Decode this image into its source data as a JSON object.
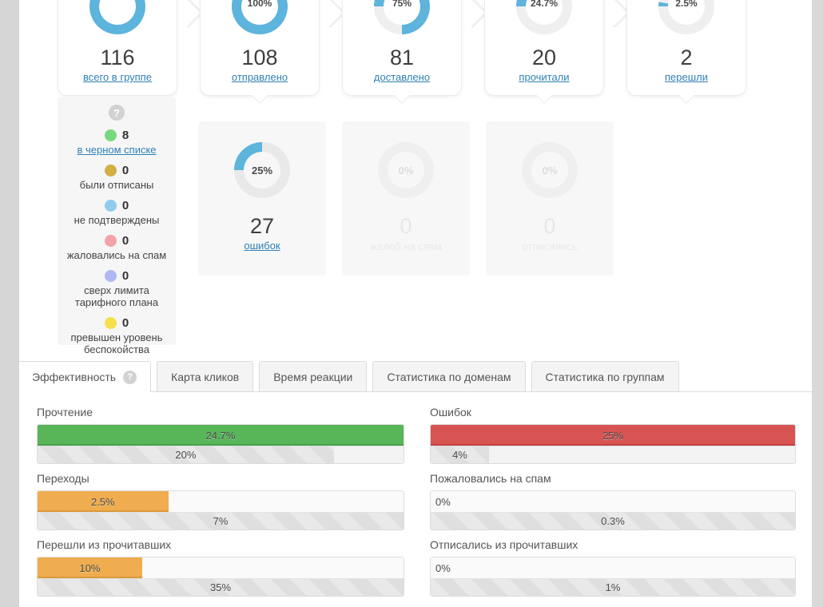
{
  "colors": {
    "accent_blue": "#5db4dc",
    "green": "#58b558",
    "orange": "#efad4f",
    "red": "#d75452",
    "link_blue": "#3080b5",
    "legend_blacklist": "#79d97f",
    "legend_unsubscribed": "#d2ae46",
    "legend_unconfirmed": "#8fccee",
    "legend_spam": "#f3a3a5",
    "legend_over_limit": "#aeb9f3",
    "legend_anxiety": "#f6e04b"
  },
  "help_icon_glyph": "?",
  "funnel_cards": [
    {
      "pct_label": "",
      "value": 100,
      "count": "116",
      "label": "всего в группе"
    },
    {
      "pct_label": "100%",
      "value": 100,
      "count": "108",
      "label": "отправлено"
    },
    {
      "pct_label": "75%",
      "value": 75,
      "count": "81",
      "label": "доставлено"
    },
    {
      "pct_label": "24.7%",
      "value": 24.7,
      "count": "20",
      "label": "прочитали"
    },
    {
      "pct_label": "2.5%",
      "value": 2.5,
      "count": "2",
      "label": "перешли"
    }
  ],
  "blacklist_panel": {
    "items": [
      {
        "count": "8",
        "label": "в черном списке"
      },
      {
        "count": "0",
        "label": "были отписаны"
      },
      {
        "count": "0",
        "label": "не подтверждены"
      },
      {
        "count": "0",
        "label": "жаловались на спам"
      },
      {
        "count": "0",
        "label": "сверх лимита тарифного плана"
      },
      {
        "count": "0",
        "label": "превышен уровень беспокойства"
      }
    ]
  },
  "secondary_cards": [
    {
      "pct_label": "25%",
      "value": 25,
      "count": "27",
      "label": "ошибок"
    },
    {
      "pct_label": "0%",
      "value": 0,
      "count": "0",
      "label": "жалоб на спам"
    },
    {
      "pct_label": "0%",
      "value": 0,
      "count": "0",
      "label": "отписались"
    }
  ],
  "tabs": [
    {
      "label": "Эффективность",
      "active": true
    },
    {
      "label": "Карта кликов"
    },
    {
      "label": "Время реакции"
    },
    {
      "label": "Статистика по доменам"
    },
    {
      "label": "Статистика по группам"
    }
  ],
  "metrics": {
    "left": [
      {
        "label": "Прочтение",
        "value": 24.7,
        "value_label": "24.7%",
        "average": 20,
        "average_label": "20%",
        "color": "green"
      },
      {
        "label": "Переходы",
        "value": 2.5,
        "value_label": "2.5%",
        "average": 7,
        "average_label": "7%",
        "color": "orange"
      },
      {
        "label": "Перешли из прочитавших",
        "value": 10,
        "value_label": "10%",
        "average": 35,
        "average_label": "35%",
        "color": "orange"
      }
    ],
    "right": [
      {
        "label": "Ошибок",
        "value": 25,
        "value_label": "25%",
        "average": 4,
        "average_label": "4%",
        "color": "red"
      },
      {
        "label": "Пожаловались на спам",
        "value": 0,
        "value_label": "0%",
        "average": 0.3,
        "average_label": "0.3%",
        "color": "red"
      },
      {
        "label": "Отписались из прочитавших",
        "value": 0,
        "value_label": "0%",
        "average": 1,
        "average_label": "1%",
        "color": "red"
      }
    ]
  }
}
